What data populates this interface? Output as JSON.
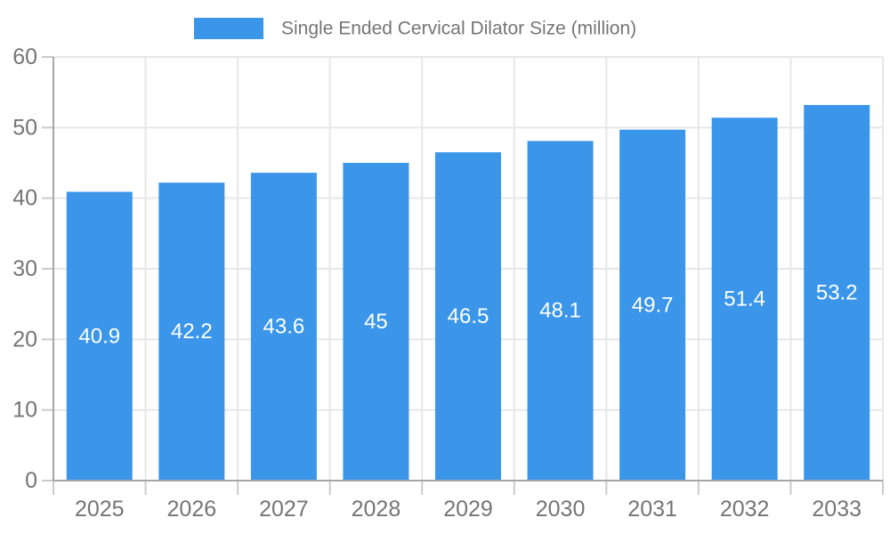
{
  "chart_data": {
    "type": "bar",
    "title": "Single Ended Cervical Dilator Size (million)",
    "categories": [
      "2025",
      "2026",
      "2027",
      "2028",
      "2029",
      "2030",
      "2031",
      "2032",
      "2033"
    ],
    "values": [
      40.9,
      42.2,
      43.6,
      45,
      46.5,
      48.1,
      49.7,
      51.4,
      53.2
    ],
    "series_name": "Single Ended Cervical Dilator Size (million)",
    "xlabel": "",
    "ylabel": "",
    "ylim": [
      0,
      60
    ],
    "yticks": [
      0,
      10,
      20,
      30,
      40,
      50,
      60
    ],
    "grid": true,
    "legend_position": "top",
    "value_labels_inside_bars": true,
    "colors": {
      "bar": "#3B96EA",
      "grid": "#E7E7E7",
      "tick": "#CBCBCB",
      "axis": "#A6A6A6",
      "text": "#757575",
      "bar_label": "#FFFFFF",
      "background": "#FFFFFF"
    }
  }
}
